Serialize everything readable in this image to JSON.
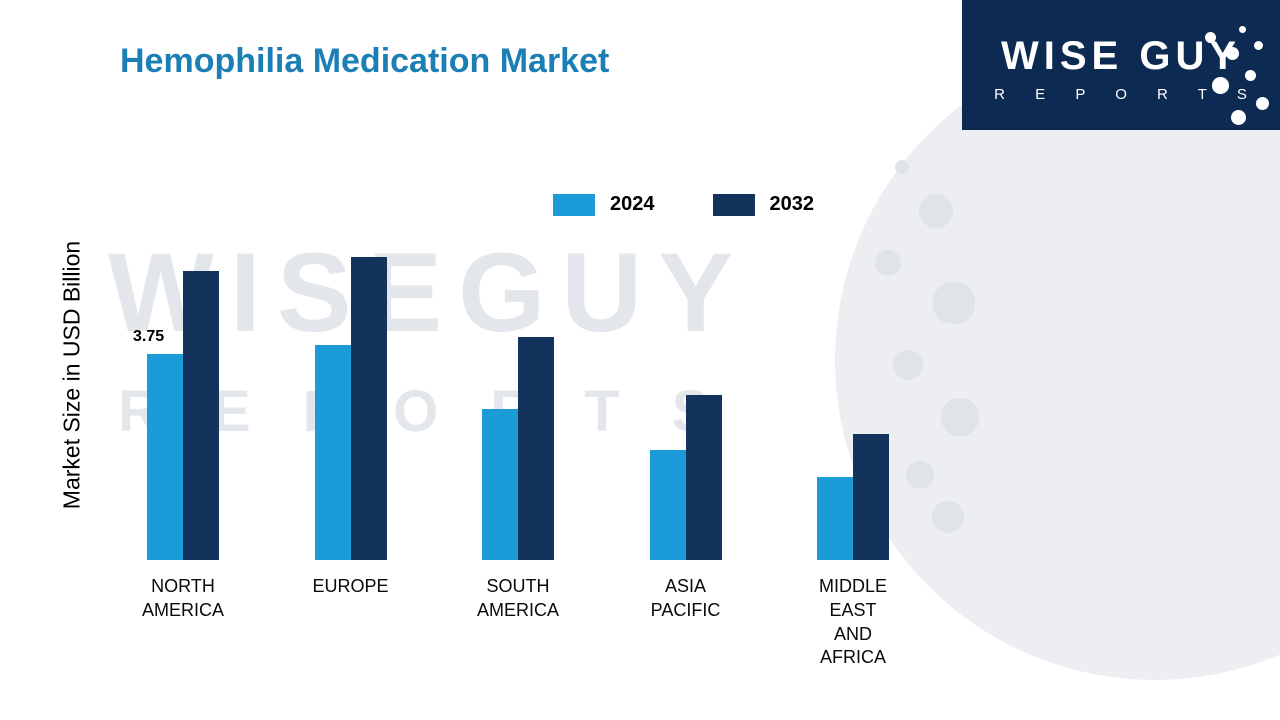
{
  "title": "Hemophilia Medication Market",
  "logo": {
    "brand": "WISE GUY",
    "sub": "R E P O R T S"
  },
  "watermark": {
    "line1": "WISEGUY",
    "line2": "REPORTS"
  },
  "colors": {
    "title": "#1b7fb5",
    "logo_background": "#0d2b52",
    "series_2024": "#1b9cd8",
    "series_2032": "#13335c",
    "watermark": "#e3e6ea"
  },
  "chart_data": {
    "type": "bar",
    "title": "Hemophilia Medication Market",
    "xlabel": "",
    "ylabel": "Market Size in USD Billion",
    "ylim": [
      0,
      6
    ],
    "grid": false,
    "legend_position": "top",
    "categories": [
      "NORTH AMERICA",
      "EUROPE",
      "SOUTH AMERICA",
      "ASIA PACIFIC",
      "MIDDLE EAST AND AFRICA"
    ],
    "series": [
      {
        "name": "2024",
        "color": "#1b9cd8",
        "values": [
          3.75,
          3.9,
          2.75,
          2.0,
          1.5
        ]
      },
      {
        "name": "2032",
        "color": "#13335c",
        "values": [
          5.25,
          5.5,
          4.05,
          3.0,
          2.3
        ]
      }
    ],
    "annotations": [
      {
        "category_index": 0,
        "series_index": 0,
        "text": "3.75"
      }
    ]
  }
}
